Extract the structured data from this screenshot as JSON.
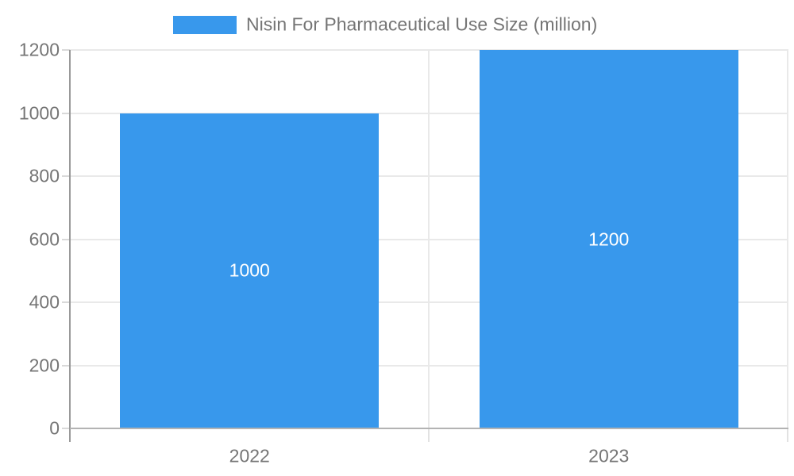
{
  "legend": {
    "label": "Nisin For Pharmaceutical Use Size (million)"
  },
  "chart_data": {
    "type": "bar",
    "title": "Nisin For Pharmaceutical Use Size (million)",
    "categories": [
      "2022",
      "2023"
    ],
    "series": [
      {
        "name": "Nisin For Pharmaceutical Use Size (million)",
        "values": [
          1000,
          1200
        ]
      }
    ],
    "data_labels": [
      "1000",
      "1200"
    ],
    "xlabel": "",
    "ylabel": "",
    "ylim": [
      0,
      1200
    ],
    "yticks": [
      0,
      200,
      400,
      600,
      800,
      1000,
      1200
    ],
    "grid": true,
    "legend_position": "top-center",
    "colors": {
      "bar": "#3898EC",
      "grid": "#e9e9e9",
      "y_axis_line": "#999999",
      "x_axis_line": "#b3b3b3",
      "axis_text": "#757575",
      "bar_label_text": "#ffffff"
    }
  }
}
